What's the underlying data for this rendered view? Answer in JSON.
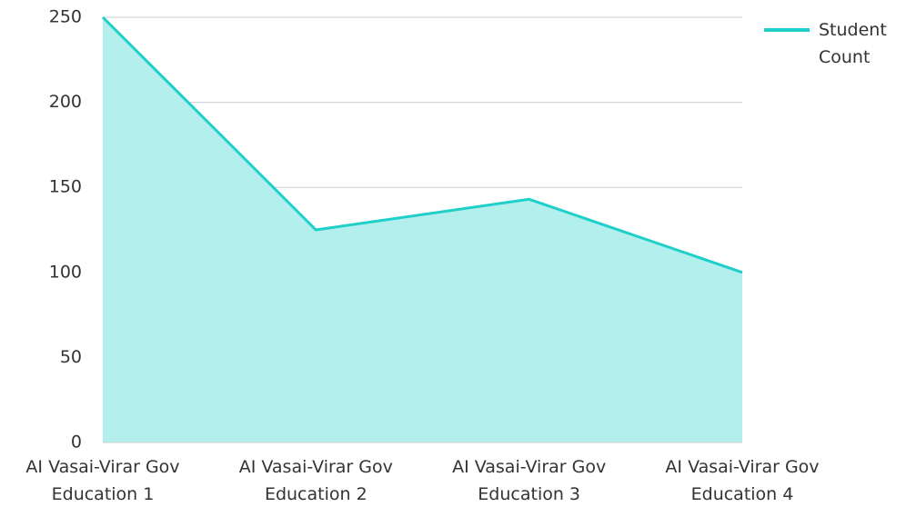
{
  "chart_data": {
    "type": "area",
    "categories": [
      "AI Vasai-Virar Gov Education 1",
      "AI Vasai-Virar Gov Education 2",
      "AI Vasai-Virar Gov Education 3",
      "AI Vasai-Virar Gov Education 4"
    ],
    "series": [
      {
        "name": "Student Count",
        "color": "#1fcfc9",
        "fill": "#b2efed",
        "values": [
          250,
          125,
          143,
          100
        ]
      }
    ],
    "ylim": [
      0,
      250
    ],
    "yticks": [
      0,
      50,
      100,
      150,
      200,
      250
    ],
    "grid": true,
    "legend": "top-right"
  }
}
